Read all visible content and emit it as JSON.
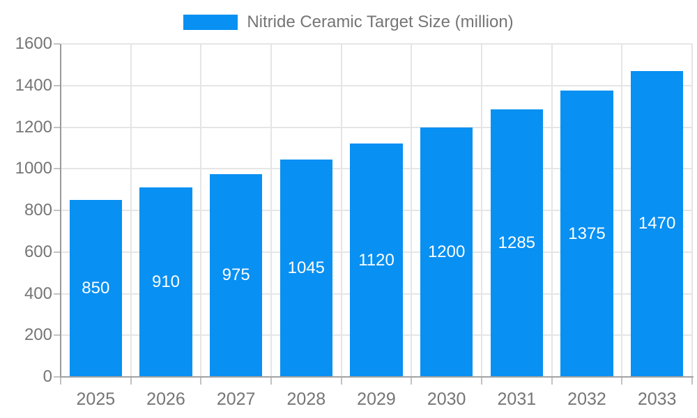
{
  "legend": {
    "label": "Nitride Ceramic Target Size (million)"
  },
  "chart_data": {
    "type": "bar",
    "title": "Nitride Ceramic Target Size (million)",
    "categories": [
      "2025",
      "2026",
      "2027",
      "2028",
      "2029",
      "2030",
      "2031",
      "2032",
      "2033"
    ],
    "values": [
      850,
      910,
      975,
      1045,
      1120,
      1200,
      1285,
      1375,
      1470
    ],
    "xlabel": "",
    "ylabel": "",
    "ylim": [
      0,
      1600
    ],
    "ytick_step": 200,
    "yticks": [
      0,
      200,
      400,
      600,
      800,
      1000,
      1200,
      1400,
      1600
    ],
    "grid": true,
    "legend_position": "top",
    "bar_label_position": "center-inside",
    "colors": {
      "bar": "#0890f2",
      "bar_label": "#ffffff",
      "axis_text": "#757575",
      "grid_line": "#e5e5e5",
      "axis_line": "#9a9a9a"
    }
  }
}
